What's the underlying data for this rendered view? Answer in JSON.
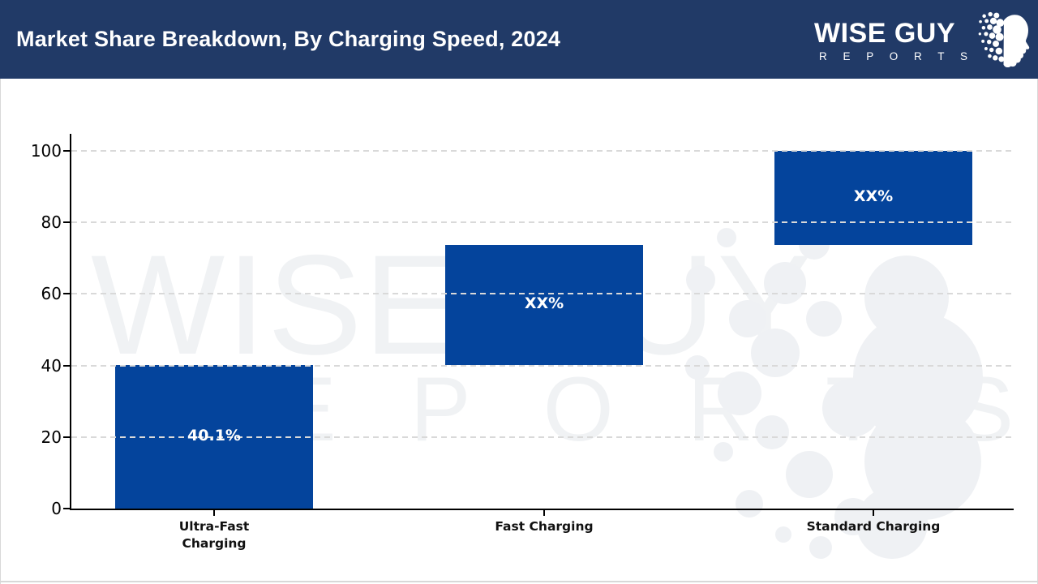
{
  "header": {
    "title": "Market Share Breakdown, By Charging Speed, 2024",
    "logo": {
      "brand_line": "WISE GUY",
      "reports_line": "R E P O R T S"
    }
  },
  "watermark": {
    "line1": "WISE GUY",
    "line2": "R E P O R T S"
  },
  "chart_data": {
    "type": "bar",
    "variant": "waterfall-segments",
    "title": "Market Share Breakdown, By Charging Speed, 2024",
    "categories": [
      "Ultra-Fast Charging",
      "Fast Charging",
      "Standard Charging"
    ],
    "category_display_lines": [
      [
        "Ultra-Fast",
        "Charging"
      ],
      [
        "Fast Charging"
      ],
      [
        "Standard Charging"
      ]
    ],
    "segments": [
      {
        "category": "Ultra-Fast Charging",
        "start": 0,
        "end": 40.1,
        "value_label": "40.1%"
      },
      {
        "category": "Fast Charging",
        "start": 40.1,
        "end": 73.7,
        "value_label": "XX%"
      },
      {
        "category": "Standard Charging",
        "start": 73.7,
        "end": 100,
        "value_label": "XX%"
      }
    ],
    "yticks": [
      0,
      20,
      40,
      60,
      80,
      100
    ],
    "ylim": [
      0,
      104.8
    ],
    "xlabel": "",
    "ylabel": "",
    "legend": null,
    "grid": "horizontal-dashed",
    "colors": {
      "bar": "#04449C",
      "bar_label": "#ffffff",
      "grid": "#d9d9d9",
      "axis": "#000000",
      "header_bg": "#213A67",
      "watermark": "#f0f2f4"
    }
  }
}
